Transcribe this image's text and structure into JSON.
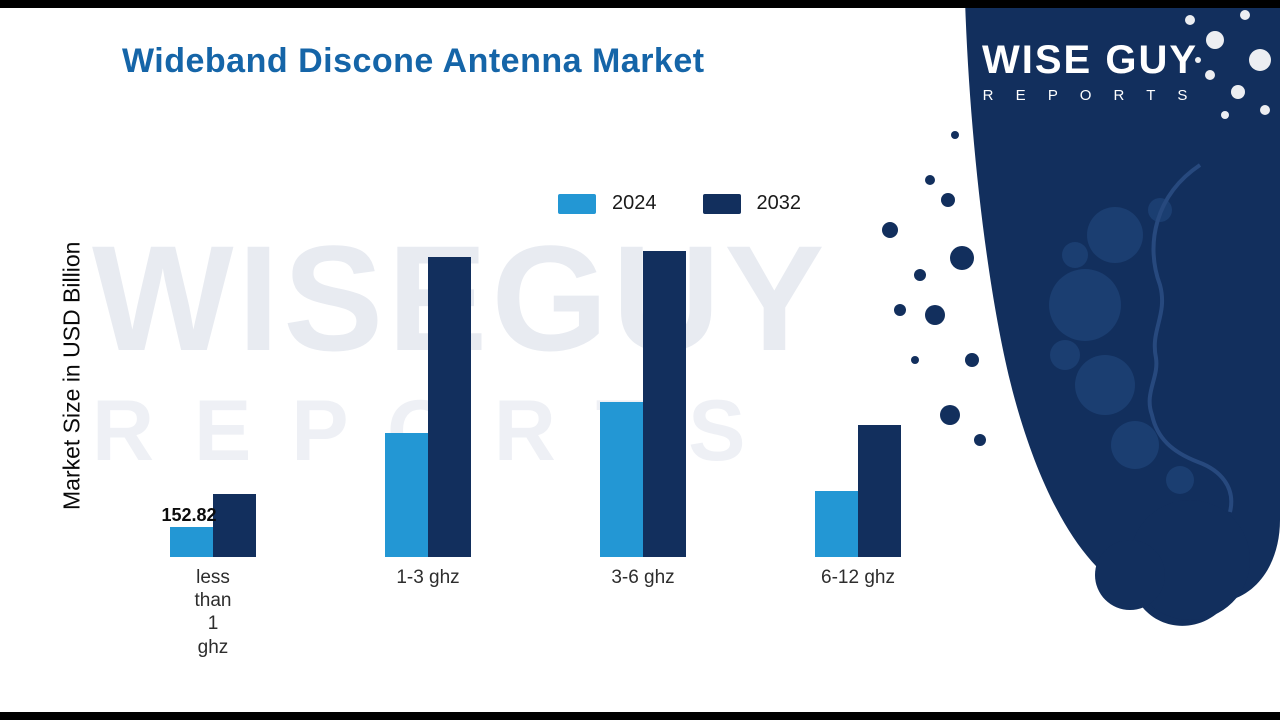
{
  "page": {
    "background": "#ffffff",
    "top_bar_color": "#000000",
    "bottom_bar_color": "#000000"
  },
  "header": {
    "title": "Wideband Discone Antenna Market",
    "title_color": "#1565a8"
  },
  "brand": {
    "name_line1": "WISE GUY",
    "name_line2": "R E P O R T S",
    "panel_color": "#122f5d",
    "text_color": "#ffffff"
  },
  "watermark": {
    "line1": "WISEGUY",
    "line2": "R E P O R T S"
  },
  "chart_data": {
    "type": "bar",
    "title": "Wideband Discone Antenna Market",
    "ylabel": "Market Size in USD Billion",
    "xlabel": "",
    "units": "USD Billion",
    "categories": [
      "less than 1 ghz",
      "1-3 ghz",
      "3-6 ghz",
      "6-12 ghz"
    ],
    "category_label_lines": [
      [
        "less",
        "than",
        "1",
        "ghz"
      ],
      [
        "1-3 ghz"
      ],
      [
        "3-6 ghz"
      ],
      [
        "6-12 ghz"
      ]
    ],
    "series": [
      {
        "name": "2024",
        "color": "#2397d4",
        "values": [
          152.82,
          640,
          795,
          340
        ]
      },
      {
        "name": "2032",
        "color": "#122f5d",
        "values": [
          325,
          1545,
          1575,
          680
        ]
      }
    ],
    "value_label": {
      "text": "152.82",
      "series": "2024",
      "category": "less than 1 ghz"
    },
    "ylim": [
      0,
      1620
    ],
    "grid": false,
    "legend_position": "top-center"
  }
}
